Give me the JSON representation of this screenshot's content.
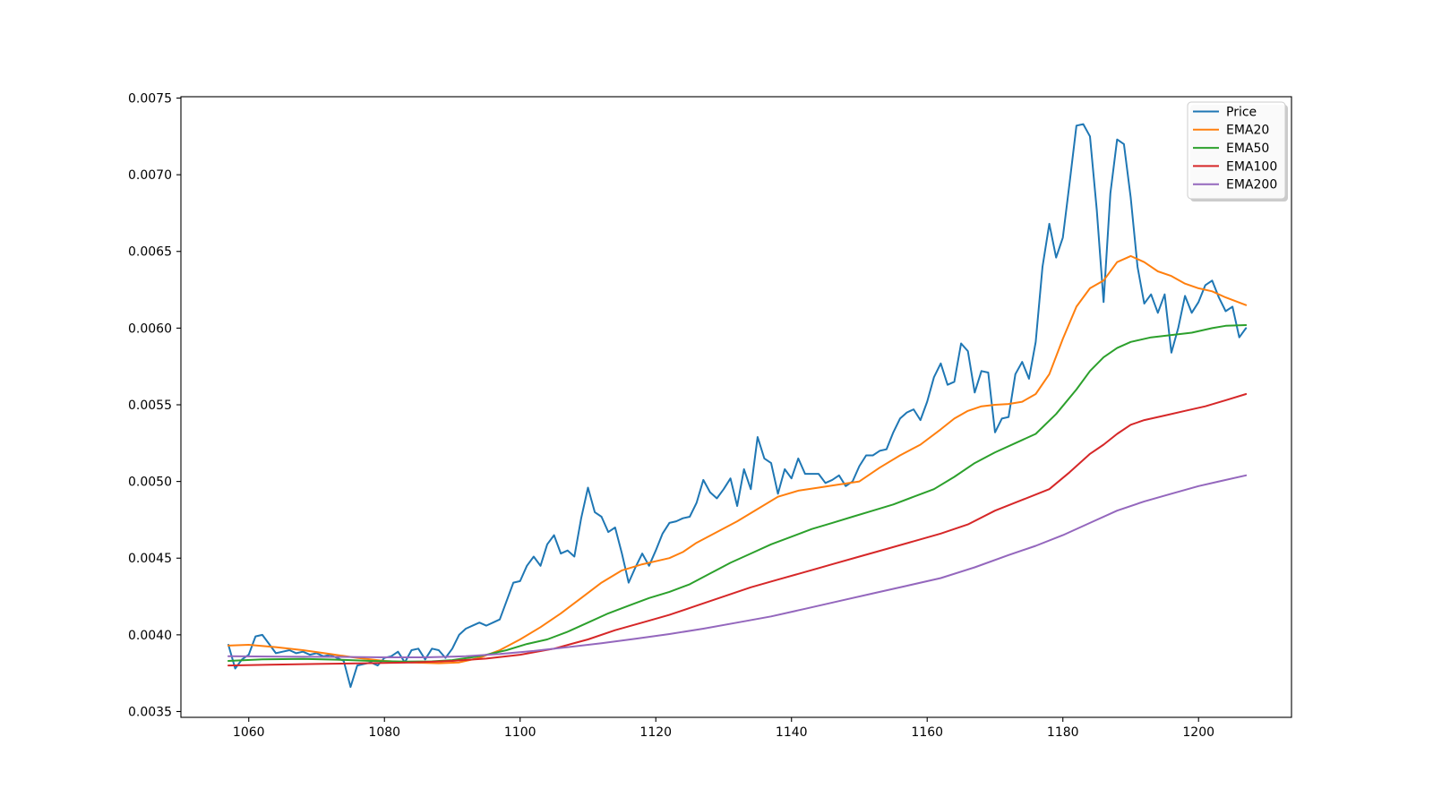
{
  "chart_data": {
    "type": "line",
    "title": "",
    "xlabel": "",
    "ylabel": "",
    "grid": false,
    "xlim": [
      1050,
      1213.7
    ],
    "ylim": [
      0.003462,
      0.0075088
    ],
    "x_ticks": [
      1060,
      1080,
      1100,
      1120,
      1140,
      1160,
      1180,
      1200
    ],
    "y_ticks": [
      {
        "value": 0.0035,
        "label": "0.0035"
      },
      {
        "value": 0.004,
        "label": "0.0040"
      },
      {
        "value": 0.0045,
        "label": "0.0045"
      },
      {
        "value": 0.005,
        "label": "0.0050"
      },
      {
        "value": 0.0055,
        "label": "0.0055"
      },
      {
        "value": 0.006,
        "label": "0.0060"
      },
      {
        "value": 0.0065,
        "label": "0.0065"
      },
      {
        "value": 0.007,
        "label": "0.0070"
      }
    ],
    "y_top_tick": {
      "value": 0.0075,
      "label": "0.0075"
    },
    "legend": {
      "position": "upper right"
    },
    "series": [
      {
        "name": "Price",
        "color": "#1f77b4",
        "x_start": 1057,
        "x_step": 1,
        "values": [
          0.003935,
          0.00378,
          0.00384,
          0.00387,
          0.00399,
          0.004,
          0.00394,
          0.00388,
          0.00389,
          0.0039,
          0.00388,
          0.00389,
          0.00387,
          0.00388,
          0.00386,
          0.00387,
          0.00385,
          0.00383,
          0.00366,
          0.0038,
          0.00381,
          0.00382,
          0.0038,
          0.00385,
          0.00386,
          0.00389,
          0.00382,
          0.0039,
          0.00391,
          0.00384,
          0.00391,
          0.0039,
          0.00385,
          0.00391,
          0.004,
          0.00404,
          0.00406,
          0.00408,
          0.00406,
          0.00408,
          0.0041,
          0.00422,
          0.00434,
          0.00435,
          0.00445,
          0.00451,
          0.00445,
          0.00459,
          0.00465,
          0.00453,
          0.00455,
          0.00451,
          0.00476,
          0.00496,
          0.0048,
          0.00477,
          0.00467,
          0.0047,
          0.00453,
          0.00434,
          0.00444,
          0.00453,
          0.00445,
          0.00455,
          0.00466,
          0.00473,
          0.00474,
          0.00476,
          0.00477,
          0.00486,
          0.00501,
          0.00493,
          0.00489,
          0.00495,
          0.00502,
          0.00484,
          0.00508,
          0.00495,
          0.00529,
          0.00515,
          0.00512,
          0.00492,
          0.00508,
          0.00502,
          0.00515,
          0.00505,
          0.00505,
          0.00505,
          0.00499,
          0.00501,
          0.00504,
          0.00497,
          0.005,
          0.0051,
          0.00517,
          0.00517,
          0.0052,
          0.00521,
          0.00532,
          0.00541,
          0.00545,
          0.00547,
          0.0054,
          0.00552,
          0.00568,
          0.00577,
          0.00563,
          0.00565,
          0.0059,
          0.00585,
          0.00558,
          0.00572,
          0.00571,
          0.00532,
          0.00541,
          0.00542,
          0.0057,
          0.00578,
          0.00567,
          0.00591,
          0.0064,
          0.00668,
          0.00646,
          0.00659,
          0.00695,
          0.00732,
          0.00733,
          0.00725,
          0.00677,
          0.00617,
          0.00688,
          0.00723,
          0.0072,
          0.00685,
          0.0064,
          0.00616,
          0.00622,
          0.0061,
          0.00622,
          0.00584,
          0.006,
          0.00621,
          0.0061,
          0.00617,
          0.00628,
          0.00631,
          0.0062,
          0.00611,
          0.00614,
          0.00594,
          0.006
        ]
      },
      {
        "name": "EMA20",
        "color": "#ff7f0e",
        "points": [
          [
            1057,
            0.00393
          ],
          [
            1060,
            0.003935
          ],
          [
            1064,
            0.00392
          ],
          [
            1068,
            0.0039
          ],
          [
            1072,
            0.003875
          ],
          [
            1076,
            0.00385
          ],
          [
            1080,
            0.00383
          ],
          [
            1084,
            0.00382
          ],
          [
            1088,
            0.003815
          ],
          [
            1091,
            0.00382
          ],
          [
            1094,
            0.00385
          ],
          [
            1097,
            0.0039
          ],
          [
            1100,
            0.00397
          ],
          [
            1103,
            0.00405
          ],
          [
            1106,
            0.00414
          ],
          [
            1109,
            0.00424
          ],
          [
            1112,
            0.00434
          ],
          [
            1115,
            0.00442
          ],
          [
            1118,
            0.00446
          ],
          [
            1120,
            0.00448
          ],
          [
            1122,
            0.0045
          ],
          [
            1124,
            0.00454
          ],
          [
            1126,
            0.0046
          ],
          [
            1129,
            0.00467
          ],
          [
            1132,
            0.00474
          ],
          [
            1135,
            0.00482
          ],
          [
            1138,
            0.0049
          ],
          [
            1141,
            0.00494
          ],
          [
            1144,
            0.00496
          ],
          [
            1147,
            0.00498
          ],
          [
            1150,
            0.005
          ],
          [
            1153,
            0.00509
          ],
          [
            1156,
            0.00517
          ],
          [
            1159,
            0.00524
          ],
          [
            1162,
            0.00534
          ],
          [
            1164,
            0.00541
          ],
          [
            1166,
            0.00546
          ],
          [
            1168,
            0.00549
          ],
          [
            1170,
            0.0055
          ],
          [
            1172,
            0.005505
          ],
          [
            1174,
            0.00552
          ],
          [
            1176,
            0.00557
          ],
          [
            1178,
            0.0057
          ],
          [
            1180,
            0.00593
          ],
          [
            1182,
            0.00614
          ],
          [
            1184,
            0.00626
          ],
          [
            1186,
            0.00631
          ],
          [
            1188,
            0.00643
          ],
          [
            1190,
            0.00647
          ],
          [
            1192,
            0.00643
          ],
          [
            1194,
            0.00637
          ],
          [
            1196,
            0.00634
          ],
          [
            1198,
            0.00629
          ],
          [
            1200,
            0.00626
          ],
          [
            1202,
            0.00624
          ],
          [
            1204,
            0.0062
          ],
          [
            1207,
            0.00615
          ]
        ]
      },
      {
        "name": "EMA50",
        "color": "#2ca02c",
        "points": [
          [
            1057,
            0.00383
          ],
          [
            1062,
            0.00384
          ],
          [
            1068,
            0.003843
          ],
          [
            1073,
            0.003838
          ],
          [
            1078,
            0.00383
          ],
          [
            1083,
            0.003825
          ],
          [
            1087,
            0.003827
          ],
          [
            1090,
            0.003835
          ],
          [
            1094,
            0.00386
          ],
          [
            1098,
            0.0039
          ],
          [
            1101,
            0.00394
          ],
          [
            1104,
            0.00397
          ],
          [
            1107,
            0.00402
          ],
          [
            1110,
            0.00408
          ],
          [
            1113,
            0.00414
          ],
          [
            1116,
            0.00419
          ],
          [
            1119,
            0.00424
          ],
          [
            1122,
            0.00428
          ],
          [
            1125,
            0.00433
          ],
          [
            1128,
            0.0044
          ],
          [
            1131,
            0.00447
          ],
          [
            1134,
            0.00453
          ],
          [
            1137,
            0.00459
          ],
          [
            1140,
            0.00464
          ],
          [
            1143,
            0.00469
          ],
          [
            1146,
            0.00473
          ],
          [
            1149,
            0.00477
          ],
          [
            1152,
            0.00481
          ],
          [
            1155,
            0.00485
          ],
          [
            1158,
            0.0049
          ],
          [
            1161,
            0.00495
          ],
          [
            1164,
            0.00503
          ],
          [
            1167,
            0.00512
          ],
          [
            1170,
            0.00519
          ],
          [
            1173,
            0.00525
          ],
          [
            1176,
            0.00531
          ],
          [
            1179,
            0.00544
          ],
          [
            1182,
            0.0056
          ],
          [
            1184,
            0.00572
          ],
          [
            1186,
            0.00581
          ],
          [
            1188,
            0.00587
          ],
          [
            1190,
            0.00591
          ],
          [
            1193,
            0.00594
          ],
          [
            1196,
            0.005955
          ],
          [
            1199,
            0.00597
          ],
          [
            1202,
            0.006
          ],
          [
            1204,
            0.006015
          ],
          [
            1207,
            0.00602
          ]
        ]
      },
      {
        "name": "EMA100",
        "color": "#d62728",
        "points": [
          [
            1057,
            0.0038
          ],
          [
            1063,
            0.003805
          ],
          [
            1070,
            0.00381
          ],
          [
            1077,
            0.003815
          ],
          [
            1084,
            0.00382
          ],
          [
            1090,
            0.00383
          ],
          [
            1095,
            0.003845
          ],
          [
            1100,
            0.00387
          ],
          [
            1105,
            0.00391
          ],
          [
            1110,
            0.00397
          ],
          [
            1114,
            0.00403
          ],
          [
            1118,
            0.00408
          ],
          [
            1122,
            0.00413
          ],
          [
            1126,
            0.00419
          ],
          [
            1130,
            0.00425
          ],
          [
            1134,
            0.00431
          ],
          [
            1138,
            0.00436
          ],
          [
            1142,
            0.00441
          ],
          [
            1146,
            0.00446
          ],
          [
            1150,
            0.00451
          ],
          [
            1154,
            0.00456
          ],
          [
            1158,
            0.00461
          ],
          [
            1162,
            0.00466
          ],
          [
            1166,
            0.00472
          ],
          [
            1170,
            0.00481
          ],
          [
            1174,
            0.00488
          ],
          [
            1178,
            0.00495
          ],
          [
            1181,
            0.00506
          ],
          [
            1184,
            0.00518
          ],
          [
            1186,
            0.00524
          ],
          [
            1188,
            0.00531
          ],
          [
            1190,
            0.00537
          ],
          [
            1192,
            0.0054
          ],
          [
            1195,
            0.00543
          ],
          [
            1198,
            0.00546
          ],
          [
            1201,
            0.00549
          ],
          [
            1204,
            0.00553
          ],
          [
            1207,
            0.00557
          ]
        ]
      },
      {
        "name": "EMA200",
        "color": "#9467bd",
        "points": [
          [
            1057,
            0.00386
          ],
          [
            1065,
            0.003858
          ],
          [
            1073,
            0.003856
          ],
          [
            1080,
            0.003853
          ],
          [
            1086,
            0.003853
          ],
          [
            1092,
            0.00386
          ],
          [
            1097,
            0.003875
          ],
          [
            1102,
            0.003895
          ],
          [
            1107,
            0.00392
          ],
          [
            1112,
            0.003945
          ],
          [
            1117,
            0.003975
          ],
          [
            1122,
            0.004005
          ],
          [
            1127,
            0.00404
          ],
          [
            1132,
            0.00408
          ],
          [
            1137,
            0.00412
          ],
          [
            1142,
            0.00417
          ],
          [
            1147,
            0.00422
          ],
          [
            1152,
            0.00427
          ],
          [
            1157,
            0.00432
          ],
          [
            1162,
            0.00437
          ],
          [
            1167,
            0.00444
          ],
          [
            1172,
            0.00452
          ],
          [
            1176,
            0.00458
          ],
          [
            1180,
            0.00465
          ],
          [
            1184,
            0.00473
          ],
          [
            1188,
            0.00481
          ],
          [
            1192,
            0.00487
          ],
          [
            1196,
            0.00492
          ],
          [
            1200,
            0.00497
          ],
          [
            1203,
            0.005
          ],
          [
            1207,
            0.00504
          ]
        ]
      }
    ]
  }
}
